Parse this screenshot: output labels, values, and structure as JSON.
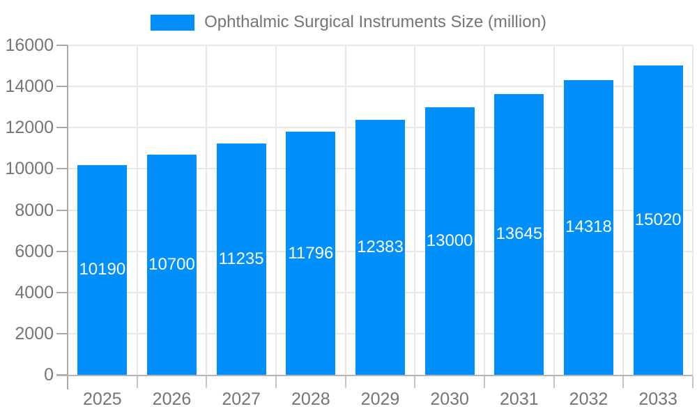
{
  "legend": {
    "swatch_color": "#008FFB",
    "title": "Ophthalmic Surgical Instruments Size (million)"
  },
  "colors": {
    "bar": "#008FFB",
    "axis_text": "#757575",
    "grid": "#E8E8E8",
    "y_axis_line": "#A9A9A9",
    "x_axis_line": "#B5B5B5",
    "tick": "#C4C4C4",
    "bar_label_text": "#FFFFFF",
    "background": "#FFFFFF"
  },
  "chart_data": {
    "type": "bar",
    "title": "Ophthalmic Surgical Instruments Size (million)",
    "categories": [
      "2025",
      "2026",
      "2027",
      "2028",
      "2029",
      "2030",
      "2031",
      "2032",
      "2033"
    ],
    "values": [
      10190,
      10700,
      11235,
      11796,
      12383,
      13000,
      13645,
      14318,
      15020
    ],
    "series": [
      {
        "name": "Ophthalmic Surgical Instruments Size (million)",
        "values": [
          10190,
          10700,
          11235,
          11796,
          12383,
          13000,
          13645,
          14318,
          15020
        ]
      }
    ],
    "xlabel": "",
    "ylabel": "",
    "ylim": [
      0,
      16000
    ],
    "y_ticks": [
      0,
      2000,
      4000,
      6000,
      8000,
      10000,
      12000,
      14000,
      16000
    ],
    "y_tick_labels": [
      "0",
      "2000",
      "4000",
      "6000",
      "8000",
      "10000",
      "12000",
      "14000",
      "16000"
    ],
    "grid": "horizontal and vertical gridlines, light gray",
    "legend_position": "top-center",
    "bar_value_labels": "shown in white, centered inside each bar"
  }
}
